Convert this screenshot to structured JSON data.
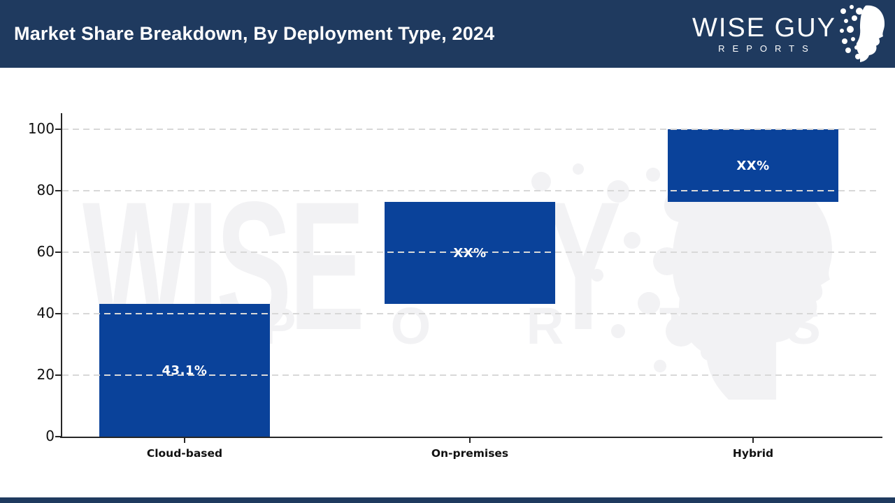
{
  "header": {
    "title": "Market Share Breakdown, By Deployment Type, 2024",
    "logo": {
      "wordmark": "WISE GUY",
      "reports": "REPORTS"
    }
  },
  "chart_data": {
    "type": "bar",
    "subtype": "waterfall-segments",
    "title": "Market Share Breakdown, By Deployment Type, 2024",
    "categories": [
      "Cloud-based",
      "On-premises",
      "Hybrid"
    ],
    "bars": [
      {
        "category": "Cloud-based",
        "from": 0,
        "to": 43.1,
        "label": "43.1%"
      },
      {
        "category": "On-premises",
        "from": 43.1,
        "to": 76.3,
        "label": "XX%"
      },
      {
        "category": "Hybrid",
        "from": 76.3,
        "to": 100,
        "label": "XX%"
      }
    ],
    "xlabel": "",
    "ylabel": "",
    "ylim": [
      0,
      100
    ],
    "yticks": [
      0,
      20,
      40,
      60,
      80,
      100
    ],
    "grid": "horizontal-dashed",
    "legend": "none",
    "colors": {
      "bar": "#0a429a",
      "bar_label": "#ffffff",
      "grid": "#d8d8d8",
      "axis": "#262626",
      "header_bg": "#1f3a5f",
      "watermark": "#f2f2f4"
    }
  },
  "watermark": {
    "wise": "WISE",
    "guy_y": "Y",
    "ports": "P O R T S"
  }
}
